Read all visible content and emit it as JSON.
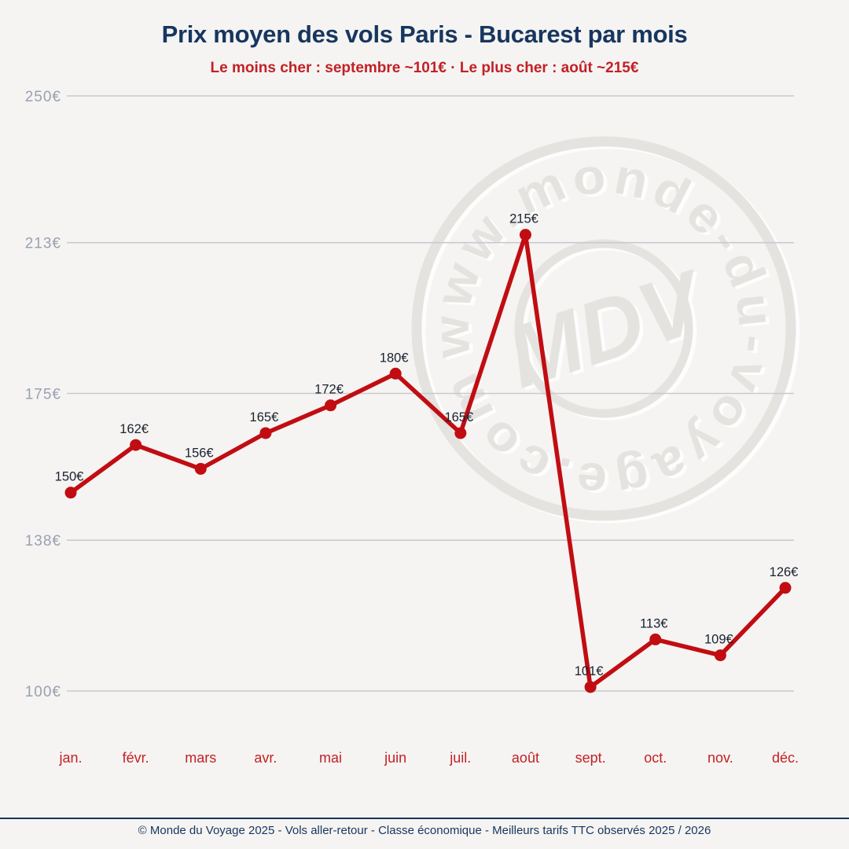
{
  "title": "Prix moyen des vols Paris - Bucarest par mois",
  "subtitle": "Le moins cher : septembre ~101€ · Le plus cher : août ~215€",
  "footer": "© Monde du Voyage 2025 - Vols aller-retour - Classe économique - Meilleurs tarifs TTC observés 2025 / 2026",
  "watermark": {
    "circle_text": "www.monde-du-voyage.com",
    "center_text": "MDV"
  },
  "colors": {
    "background": "#f5f4f2",
    "title_navy": "#17365f",
    "accent_red": "#c32026",
    "line_red": "#c10d12",
    "axis_gray": "#99a1b0",
    "grid_gray": "#c7cad0",
    "point_label_dark": "#1a2230",
    "watermark_gray": "#e2e1de"
  },
  "chart_data": {
    "type": "line",
    "title": "Prix moyen des vols Paris - Bucarest par mois",
    "categories": [
      "jan.",
      "févr.",
      "mars",
      "avr.",
      "mai",
      "juin",
      "juil.",
      "août",
      "sept.",
      "oct.",
      "nov.",
      "déc."
    ],
    "values": [
      150,
      162,
      156,
      165,
      172,
      180,
      165,
      215,
      101,
      113,
      109,
      126
    ],
    "point_labels": [
      "150€",
      "162€",
      "156€",
      "165€",
      "172€",
      "180€",
      "165€",
      "215€",
      "101€",
      "113€",
      "109€",
      "126€"
    ],
    "y_ticks": [
      100,
      138,
      175,
      213,
      250
    ],
    "y_tick_labels": [
      "100€",
      "138€",
      "175€",
      "213€",
      "250€"
    ],
    "ylim": [
      100,
      250
    ],
    "xlabel": "",
    "ylabel": "",
    "grid": "horizontal-only",
    "legend": false,
    "min_month": "septembre",
    "min_value": 101,
    "max_month": "août",
    "max_value": 215
  }
}
